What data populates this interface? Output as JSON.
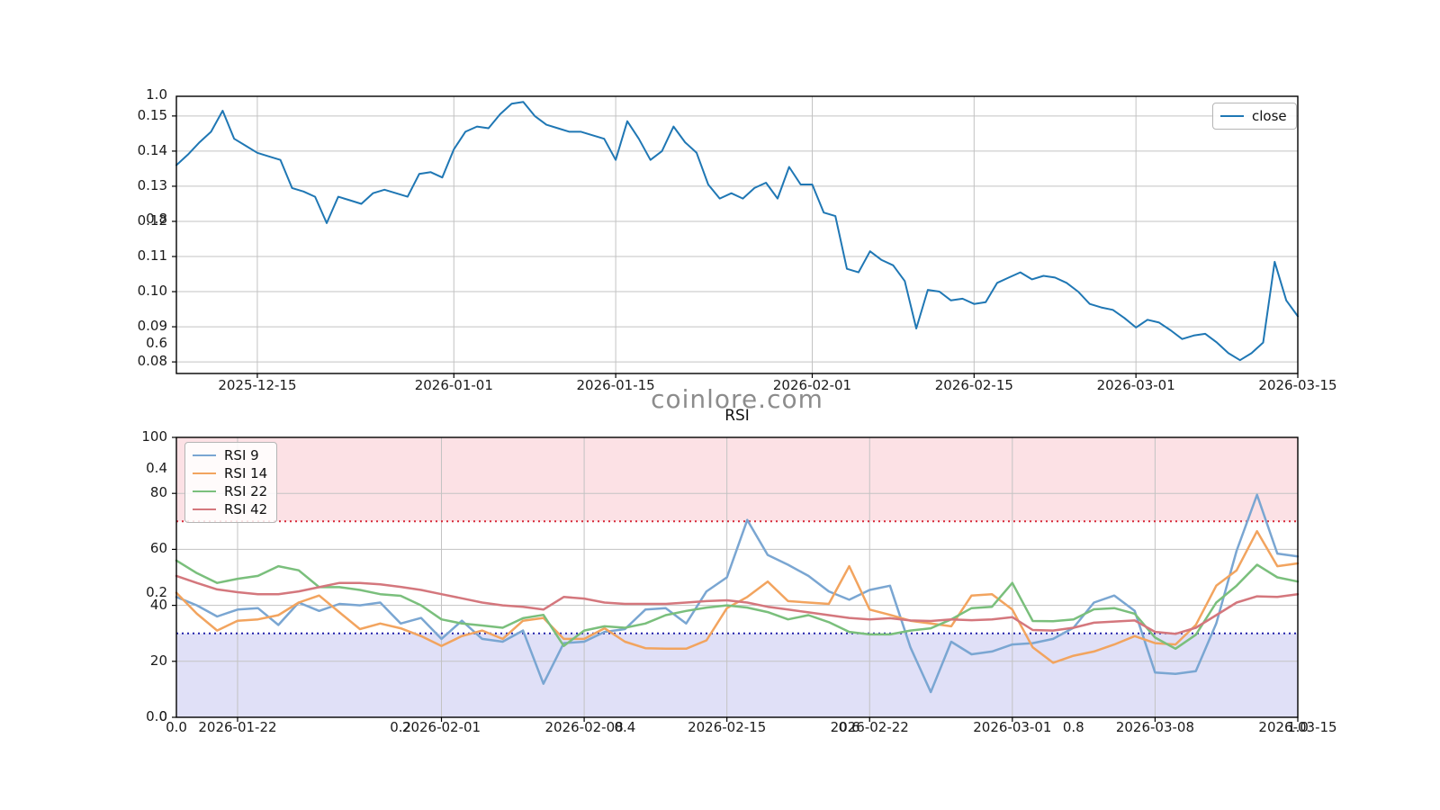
{
  "watermark": "coinlore.com",
  "chart_titles": {
    "rsi": "RSI"
  },
  "colors": {
    "grid": "#c3c3c3",
    "spine": "#000000",
    "tick_text": "#1a1a1a",
    "watermark": "#8c8c8c",
    "close_line": "#1f77b4",
    "rsi9_line": "#7aa6d2",
    "rsi14_line": "#f2a45f",
    "rsi22_line": "#7abf7c",
    "rsi42_line": "#d4777d",
    "overbought_band": "#fce1e5",
    "oversold_band": "#e0e0f7",
    "overbought_line": "#d62b3a",
    "oversold_line": "#2222aa"
  },
  "ghost_axis": {
    "y_ticks": [
      "1.0",
      "0.8",
      "0.6",
      "0.4",
      "0.2",
      "0.0"
    ],
    "x_ticks": [
      "0.0",
      "0.2",
      "0.4",
      "0.6",
      "0.8",
      "1.0"
    ]
  },
  "chart_data": [
    {
      "type": "line",
      "title": "",
      "ylim": [
        0.0767,
        0.1556
      ],
      "grid": true,
      "legend": {
        "position": "upper right",
        "entries": [
          "close"
        ]
      },
      "y_tick_labels": [
        "0.15",
        "0.14",
        "0.13",
        "0.12",
        "0.11",
        "0.10",
        "0.09",
        "0.08"
      ],
      "y_tick_values": [
        0.15,
        0.14,
        0.13,
        0.12,
        0.11,
        0.1,
        0.09,
        0.08
      ],
      "x_tick_labels": [
        "2025-12-15",
        "2026-01-01",
        "2026-01-15",
        "2026-02-01",
        "2026-02-15",
        "2026-03-01",
        "2026-03-15"
      ],
      "x_tick_positions": [
        7,
        24,
        38,
        55,
        69,
        83,
        97
      ],
      "x_count": 98,
      "x_range": [
        "2025-12-08",
        "2026-03-15"
      ],
      "series": [
        {
          "name": "close",
          "color_key": "close_line",
          "width": 2,
          "values": [
            0.136,
            0.139,
            0.1425,
            0.1455,
            0.1515,
            0.1435,
            0.1415,
            0.1395,
            0.1385,
            0.1375,
            0.1295,
            0.1285,
            0.127,
            0.1195,
            0.127,
            0.126,
            0.125,
            0.128,
            0.129,
            0.128,
            0.127,
            0.1335,
            0.134,
            0.1325,
            0.1405,
            0.1455,
            0.147,
            0.1465,
            0.1505,
            0.1535,
            0.154,
            0.15,
            0.1475,
            0.1465,
            0.1455,
            0.1455,
            0.1445,
            0.1435,
            0.1375,
            0.1485,
            0.1435,
            0.1375,
            0.14,
            0.147,
            0.1425,
            0.1395,
            0.1305,
            0.1265,
            0.128,
            0.1265,
            0.1295,
            0.131,
            0.1265,
            0.1355,
            0.1305,
            0.1305,
            0.1225,
            0.1215,
            0.1065,
            0.1055,
            0.1115,
            0.109,
            0.1075,
            0.103,
            0.0895,
            0.1005,
            0.1,
            0.0975,
            0.098,
            0.0965,
            0.097,
            0.1025,
            0.104,
            0.1055,
            0.1035,
            0.1045,
            0.104,
            0.1025,
            0.1,
            0.0965,
            0.0955,
            0.0948,
            0.0925,
            0.0898,
            0.092,
            0.0912,
            0.089,
            0.0865,
            0.0875,
            0.088,
            0.0855,
            0.0825,
            0.0805,
            0.0825,
            0.0855,
            0.1085,
            0.0975,
            0.093
          ]
        }
      ]
    },
    {
      "type": "line",
      "title": "RSI",
      "ylim": [
        0,
        100
      ],
      "grid": true,
      "legend": {
        "position": "upper left",
        "entries": [
          "RSI 9",
          "RSI 14",
          "RSI 22",
          "RSI 42"
        ]
      },
      "y_tick_labels": [
        "100",
        "80",
        "60",
        "40",
        "20",
        "0"
      ],
      "y_tick_values": [
        100,
        80,
        60,
        40,
        20,
        0
      ],
      "x_tick_labels": [
        "2026-01-22",
        "2026-02-01",
        "2026-02-08",
        "2026-02-15",
        "2026-02-22",
        "2026-03-01",
        "2026-03-08",
        "2026-03-15"
      ],
      "x_tick_positions": [
        3,
        13,
        20,
        27,
        34,
        41,
        48,
        55
      ],
      "x_count": 56,
      "x_range": [
        "2026-01-19",
        "2026-03-15"
      ],
      "bands": [
        {
          "from": 70,
          "to": 100,
          "color_key": "overbought_band"
        },
        {
          "from": 0,
          "to": 30,
          "color_key": "oversold_band"
        }
      ],
      "hlines": [
        {
          "y": 70,
          "color_key": "overbought_line"
        },
        {
          "y": 30,
          "color_key": "oversold_line"
        }
      ],
      "series": [
        {
          "name": "RSI 9",
          "color_key": "rsi9_line",
          "width": 2.5,
          "values": [
            43,
            40,
            36,
            38.5,
            39,
            33,
            41,
            38,
            40.5,
            40,
            41,
            33.5,
            35.5,
            28,
            34.5,
            28,
            27,
            31,
            12,
            26.5,
            27,
            30.5,
            31.5,
            38.5,
            39,
            33.5,
            45,
            50,
            70.5,
            58,
            54.5,
            50.5,
            45,
            42,
            45.5,
            47,
            25,
            9,
            27,
            22.5,
            23.5,
            26,
            26.5,
            28,
            32,
            41,
            43.5,
            38,
            16,
            15.5,
            16.5,
            33.5,
            59.5,
            79.5,
            58.5,
            57.5
          ]
        },
        {
          "name": "RSI 14",
          "color_key": "rsi14_line",
          "width": 2.5,
          "values": [
            44.5,
            37,
            31,
            34.5,
            35,
            36.5,
            41,
            43.5,
            37.5,
            31.5,
            33.5,
            31.8,
            29,
            25.5,
            29,
            31,
            28,
            34.5,
            35.5,
            28,
            28,
            31.8,
            27,
            24.7,
            24.5,
            24.5,
            27.5,
            39,
            43,
            48.5,
            41.5,
            41,
            40.5,
            54,
            38.5,
            36.6,
            34.5,
            33.5,
            32.5,
            43.5,
            44,
            38.5,
            25,
            19.5,
            22,
            23.5,
            26,
            29,
            26.5,
            26,
            33,
            47,
            52.5,
            66.5,
            54,
            55
          ]
        },
        {
          "name": "RSI 22",
          "color_key": "rsi22_line",
          "width": 2.5,
          "values": [
            56,
            51.5,
            48,
            49.5,
            50.5,
            54,
            52.5,
            46.5,
            46.5,
            45.5,
            44,
            43.4,
            40,
            35,
            33.5,
            32.8,
            32,
            35.4,
            36.6,
            25.5,
            31,
            32.5,
            32,
            33.5,
            36.5,
            38,
            39.2,
            40,
            39.2,
            37.6,
            35,
            36.5,
            34,
            30.5,
            29.6,
            29.6,
            31,
            31.8,
            35,
            39,
            39.5,
            48,
            34.4,
            34.3,
            35,
            38.6,
            39,
            37,
            28.5,
            24.5,
            29.5,
            41,
            47,
            54.5,
            50,
            48.5
          ]
        },
        {
          "name": "RSI 42",
          "color_key": "rsi42_line",
          "width": 2.5,
          "values": [
            50.5,
            48,
            45.7,
            44.7,
            44,
            44,
            45,
            46.5,
            48,
            48,
            47.5,
            46.6,
            45.5,
            44,
            42.5,
            41,
            40,
            39.5,
            38.5,
            43,
            42.4,
            41,
            40.5,
            40.5,
            40.5,
            41,
            41.5,
            41.8,
            41,
            39.5,
            38.5,
            37.5,
            36.5,
            35.5,
            35,
            35.4,
            34.6,
            34.4,
            35,
            34.7,
            35,
            35.8,
            31.2,
            31,
            32,
            33.8,
            34.2,
            34.6,
            30.5,
            29.8,
            32,
            36.5,
            41,
            43.2,
            43,
            44
          ]
        }
      ]
    }
  ]
}
